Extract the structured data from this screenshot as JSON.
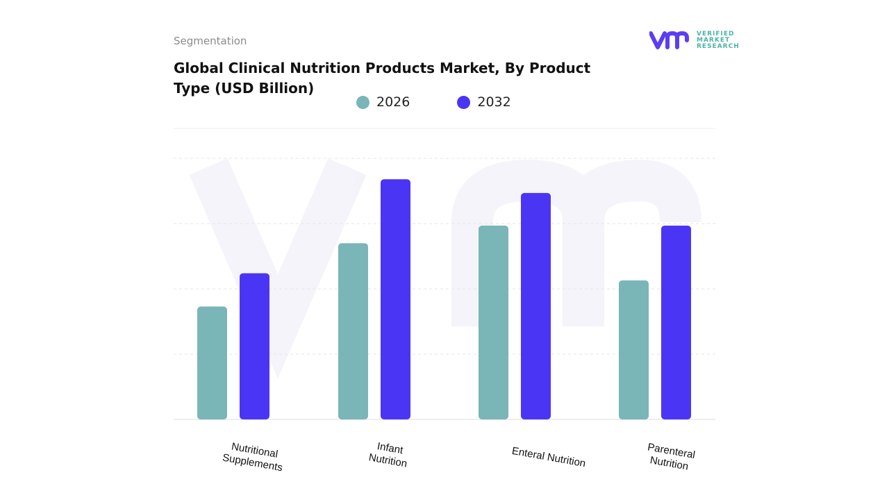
{
  "header": {
    "section": "Segmentation",
    "title": "Global Clinical Nutrition Products Market, By Product Type (USD Billion)"
  },
  "logo": {
    "text": [
      "VERIFIED",
      "MARKET",
      "RESEARCH"
    ],
    "color": "#4bb3a8",
    "mark_color": "#5b3df5"
  },
  "chart_data": {
    "type": "bar",
    "title": "Global Clinical Nutrition Products Market, By Product Type (USD Billion)",
    "categories": [
      "Nutritional Supplements",
      "Infant Nutrition",
      "Enteral Nutrition",
      "Parenteral Nutrition"
    ],
    "series": [
      {
        "name": "2026",
        "color": "#7ab5b8",
        "values": [
          1.73,
          2.7,
          2.97,
          2.13
        ]
      },
      {
        "name": "2032",
        "color": "#4b35f5",
        "values": [
          2.24,
          3.68,
          3.47,
          2.97
        ]
      }
    ],
    "ylim": [
      0,
      4
    ],
    "grid": true,
    "legend": "top-center",
    "xlabel": "",
    "ylabel": ""
  }
}
